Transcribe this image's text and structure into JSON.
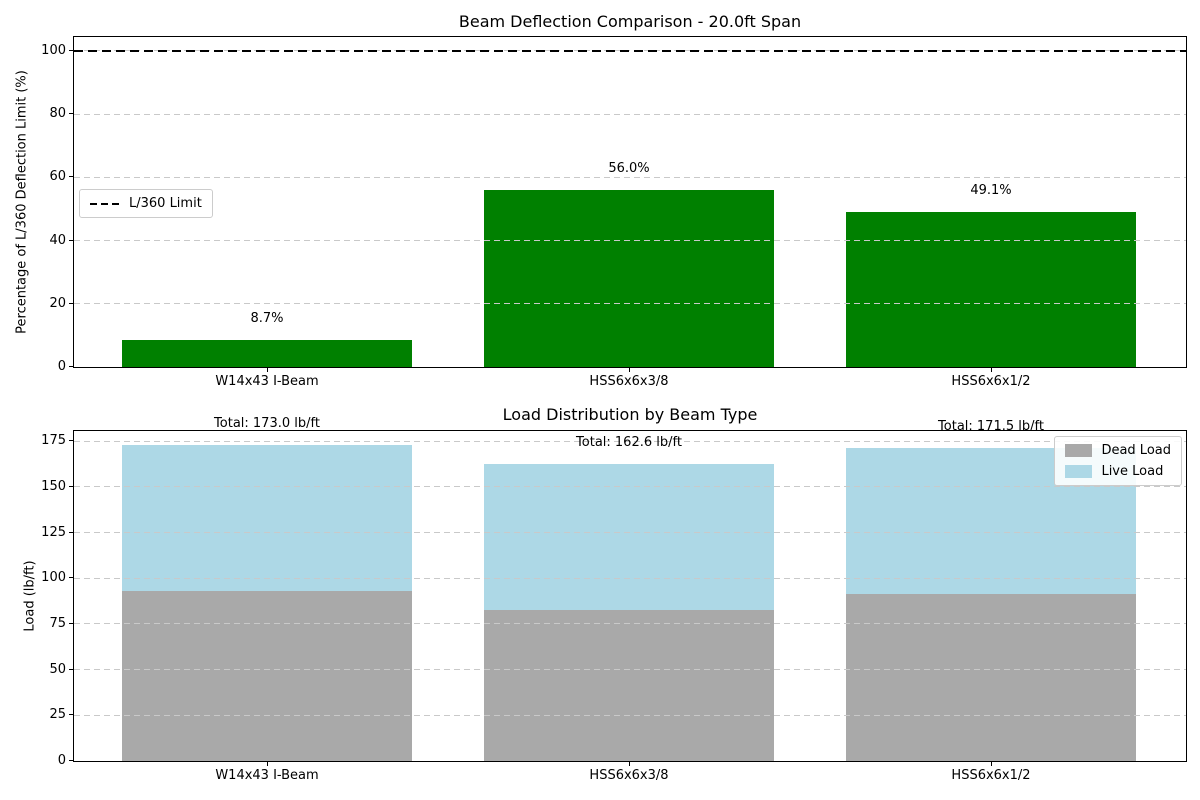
{
  "chart_data": [
    {
      "type": "bar",
      "title": "Beam Deflection Comparison - 20.0ft Span",
      "ylabel": "Percentage of L/360 Deflection Limit (%)",
      "xlabel": "",
      "categories": [
        "W14x43 I-Beam",
        "HSS6x6x3/8",
        "HSS6x6x1/2"
      ],
      "values": [
        8.7,
        56.0,
        49.1
      ],
      "bar_labels": [
        "8.7%",
        "56.0%",
        "49.1%"
      ],
      "bar_color": "#008000",
      "ylim": [
        0,
        105
      ],
      "yticks": [
        0,
        20,
        40,
        60,
        80,
        100
      ],
      "grid": "horizontal dashed",
      "reference_line": {
        "value": 100,
        "label": "L/360 Limit",
        "color": "#000000",
        "style": "dashed"
      },
      "legend": {
        "position": "center left",
        "label": "L/360 Limit"
      }
    },
    {
      "type": "stacked-bar",
      "title": "Load Distribution by Beam Type",
      "ylabel": "Load (lb/ft)",
      "xlabel": "",
      "categories": [
        "W14x43 I-Beam",
        "HSS6x6x3/8",
        "HSS6x6x1/2"
      ],
      "series": [
        {
          "name": "Dead Load",
          "color": "#A9A9A9",
          "values": [
            93.0,
            82.6,
            91.5
          ]
        },
        {
          "name": "Live Load",
          "color": "#ADD8E6",
          "values": [
            80.0,
            80.0,
            80.0
          ]
        }
      ],
      "totals": [
        173.0,
        162.6,
        171.5
      ],
      "total_labels": [
        "Total: 173.0 lb/ft",
        "Total: 162.6 lb/ft",
        "Total: 171.5 lb/ft"
      ],
      "ylim": [
        0,
        181.7
      ],
      "yticks": [
        0,
        25,
        50,
        75,
        100,
        125,
        150,
        175
      ],
      "grid": "horizontal dashed",
      "legend": {
        "position": "upper right",
        "entries": [
          "Dead Load",
          "Live Load"
        ]
      }
    }
  ],
  "colors": {
    "background": "#ffffff",
    "grid": "#c9c9c9",
    "spine": "#000000",
    "green_bar": "#008000",
    "dead_load": "#A9A9A9",
    "live_load": "#ADD8E6"
  }
}
